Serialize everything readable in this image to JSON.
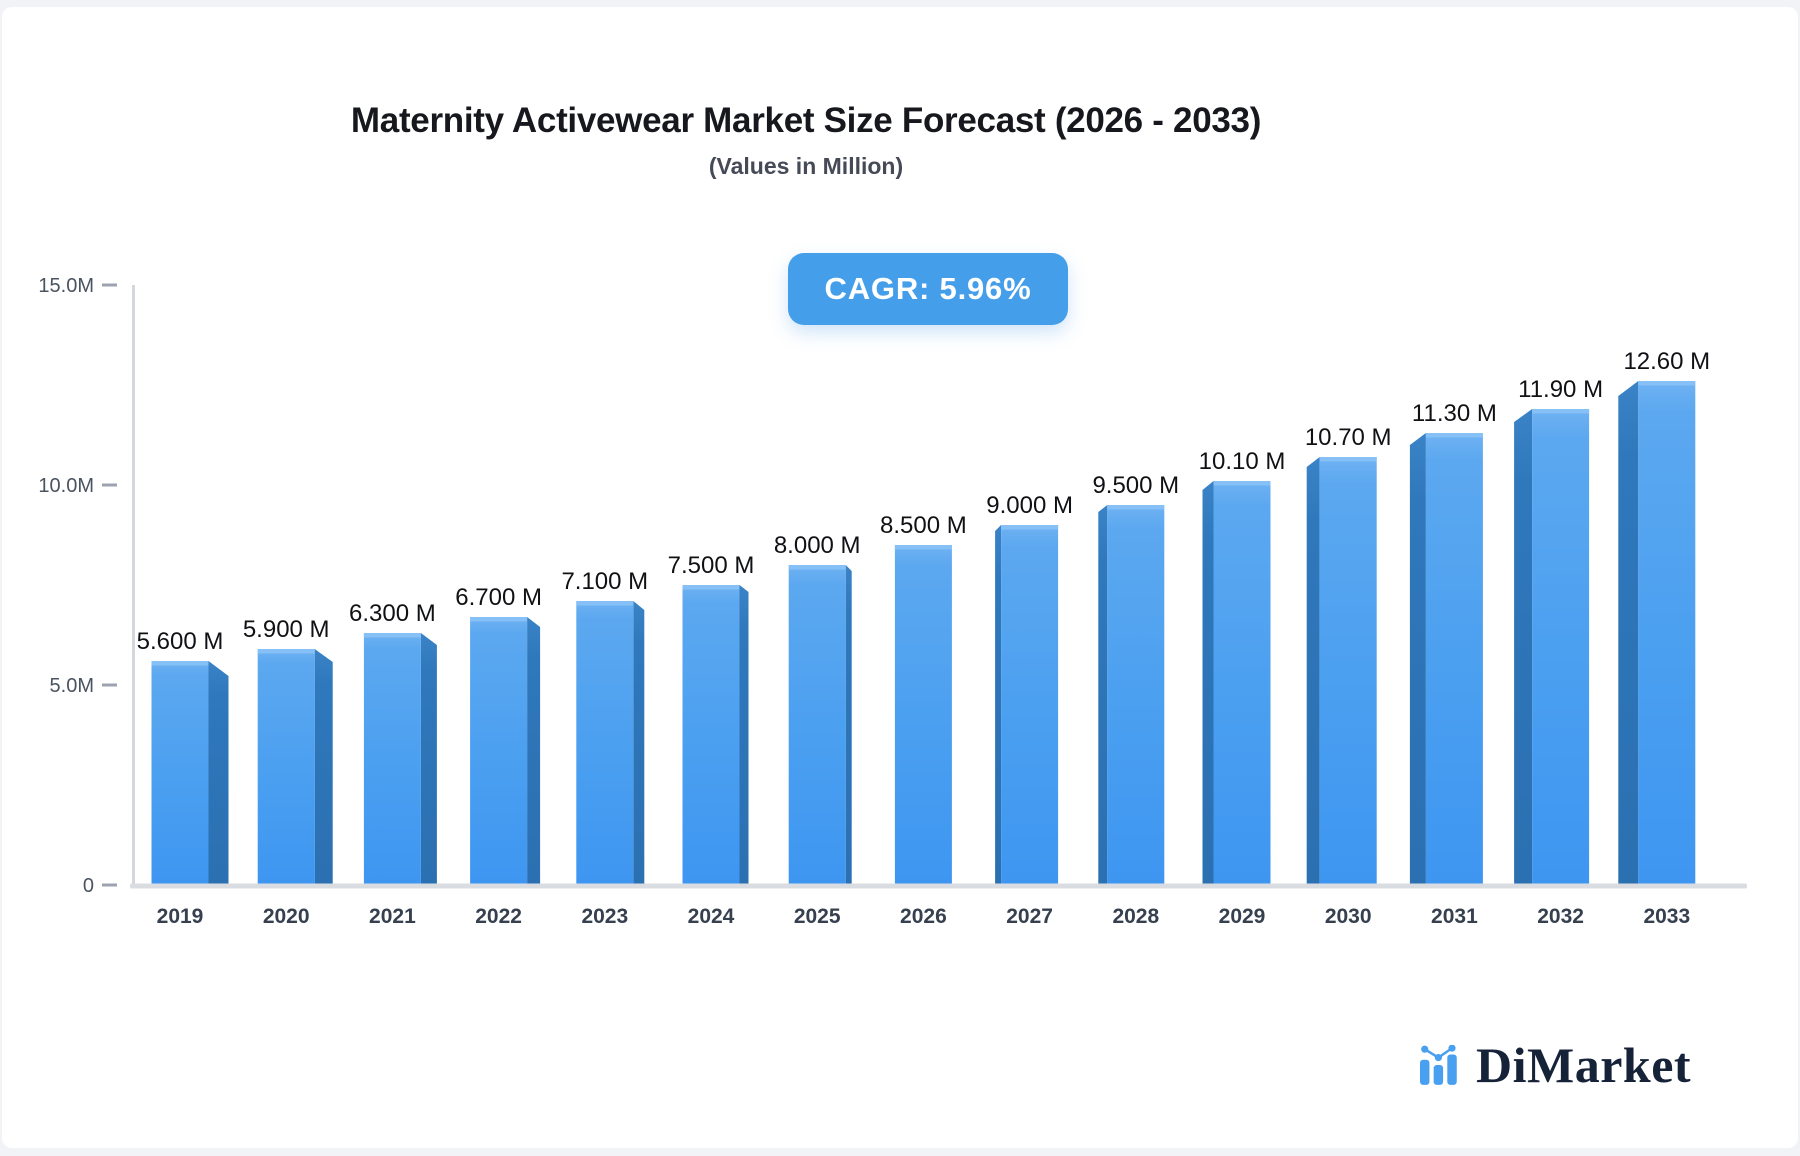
{
  "title": "Maternity Activewear Market Size Forecast (2026 - 2033)",
  "subtitle": "(Values in Million)",
  "cagr_badge": "CAGR: 5.96%",
  "brand": {
    "name": "DiMarket"
  },
  "colors": {
    "title": "#16181D",
    "subtitle": "#454A56",
    "badge_bg": "#459EEA",
    "badge_text": "#FFFFFF",
    "bar_face_top": "#6FB2F2",
    "bar_face_mid": "#4A9FF0",
    "bar_face_bottom": "#3E96F1",
    "bar_face_highlight": "#8CC4F6",
    "bar_side_top": "#3A83C6",
    "bar_side_bottom": "#2B70B1",
    "axis_line": "#D4D8DD",
    "baseline": "#D9DDE2",
    "tick_dash": "#9CA3AF",
    "y_label": "#4A5460",
    "x_label": "#36404F",
    "value_label": "#101114",
    "brand_blue": "#4AA0F0",
    "brand_navy": "#152238"
  },
  "chart_data": {
    "type": "bar",
    "title": "Maternity Activewear Market Size Forecast (2026 - 2033)",
    "subtitle": "(Values in Million)",
    "unit": "Million",
    "cagr_percent": 5.96,
    "categories": [
      "2019",
      "2020",
      "2021",
      "2022",
      "2023",
      "2024",
      "2025",
      "2026",
      "2027",
      "2028",
      "2029",
      "2030",
      "2031",
      "2032",
      "2033"
    ],
    "values": [
      5.6,
      5.9,
      6.3,
      6.7,
      7.1,
      7.5,
      8.0,
      8.5,
      9.0,
      9.5,
      10.1,
      10.7,
      11.3,
      11.9,
      12.6
    ],
    "value_labels": [
      "5.600 M",
      "5.900 M",
      "6.300 M",
      "6.700 M",
      "7.100 M",
      "7.500 M",
      "8.000 M",
      "8.500 M",
      "9.000 M",
      "9.500 M",
      "10.10 M",
      "10.70 M",
      "11.30 M",
      "11.90 M",
      "12.60 M"
    ],
    "y_ticks": [
      {
        "value": 15,
        "label": "15.0M"
      },
      {
        "value": 10,
        "label": "10.0M"
      },
      {
        "value": 5,
        "label": "5.0M"
      },
      {
        "value": 0,
        "label": "0"
      }
    ],
    "ylim": [
      0,
      15
    ],
    "grid": false,
    "legend": null,
    "style": "3d-bars, perspective toward center"
  }
}
